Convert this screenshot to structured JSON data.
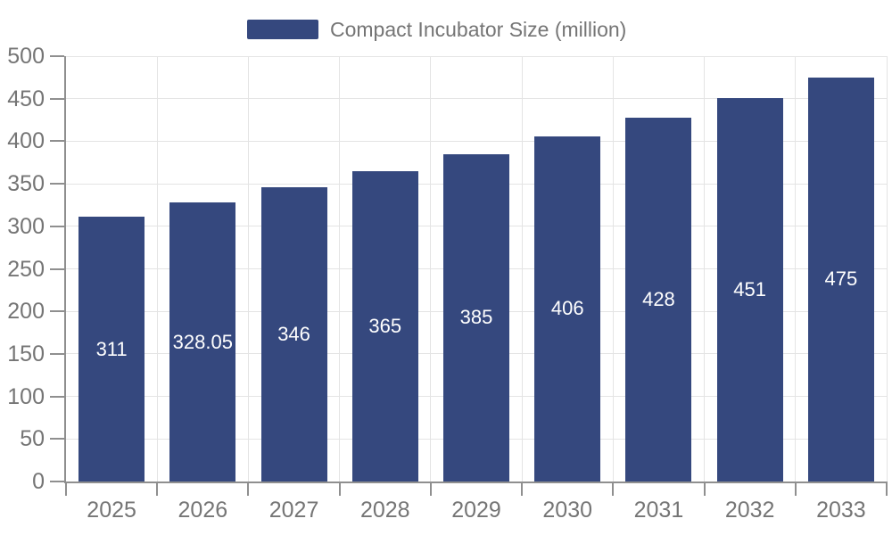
{
  "chart_data": {
    "type": "bar",
    "title": "Compact Incubator Size (million)",
    "legend": "Compact Incubator Size (million)",
    "legend_position": "top-center",
    "categories": [
      "2025",
      "2026",
      "2027",
      "2028",
      "2029",
      "2030",
      "2031",
      "2032",
      "2033"
    ],
    "values": [
      311,
      328.05,
      346,
      365,
      385,
      406,
      428,
      451,
      475
    ],
    "value_labels": [
      "311",
      "328.05",
      "346",
      "365",
      "385",
      "406",
      "428",
      "451",
      "475"
    ],
    "xlabel": "",
    "ylabel": "",
    "ylim": [
      0,
      500
    ],
    "yticks": [
      0,
      50,
      100,
      150,
      200,
      250,
      300,
      350,
      400,
      450,
      500
    ],
    "grid": true,
    "colors": {
      "bar": "#35487E",
      "bar_label": "#FFFFFF",
      "axis_text": "#757575",
      "legend_text": "#757575",
      "grid_line": "#E4E4E4",
      "axis_line": "#8F8F8F",
      "background": "#FFFFFF"
    }
  }
}
